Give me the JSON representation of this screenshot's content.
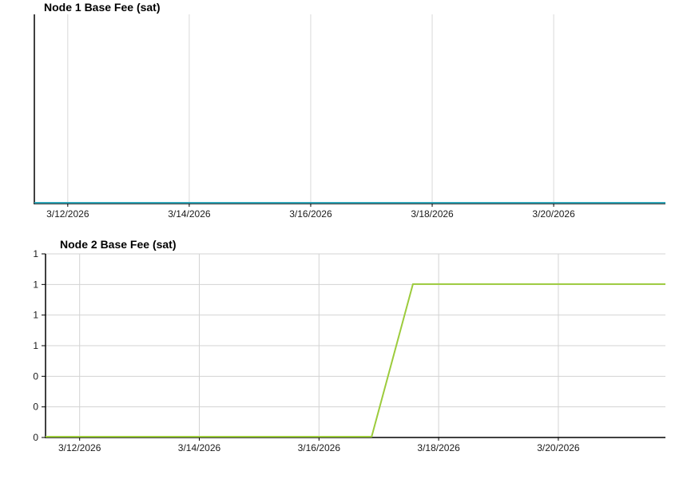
{
  "page": {
    "background": "#FFFFFF",
    "axis_color": "#000000",
    "tick_label_color": "#1A1A1A"
  },
  "chart_data": [
    {
      "type": "line",
      "title": "Node 1 Base Fee (sat)",
      "xlabel": "",
      "ylabel": "",
      "x_unit": "date (day of March 2026)",
      "x_range": [
        11.45,
        21.84
      ],
      "y_range": [
        0,
        1
      ],
      "grid": "vertical-only",
      "grid_color": "#D9D9D9",
      "legend": "none",
      "x_ticks": [
        {
          "value": 12,
          "label": "3/12/2026"
        },
        {
          "value": 14,
          "label": "3/14/2026"
        },
        {
          "value": 16,
          "label": "3/16/2026"
        },
        {
          "value": 18,
          "label": "3/18/2026"
        },
        {
          "value": 20,
          "label": "3/20/2026"
        }
      ],
      "y_ticks": [],
      "series": [
        {
          "name": "Node 1 Base Fee (sat)",
          "color": "#2FA3B5",
          "description": "constant 0 sat across the whole visible range, line hugging the x-axis",
          "points": [
            {
              "x": 11.45,
              "y": 0
            },
            {
              "x": 21.84,
              "y": 0
            }
          ]
        }
      ]
    },
    {
      "type": "line",
      "title": "Node 2 Base Fee (sat)",
      "xlabel": "",
      "ylabel": "",
      "x_unit": "date (day of March 2026)",
      "x_range": [
        11.43,
        21.79
      ],
      "y_range": [
        0,
        1.2
      ],
      "grid": "both",
      "grid_color": "#D3D3D3",
      "legend": "none",
      "x_ticks": [
        {
          "value": 12,
          "label": "3/12/2026"
        },
        {
          "value": 14,
          "label": "3/14/2026"
        },
        {
          "value": 16,
          "label": "3/16/2026"
        },
        {
          "value": 18,
          "label": "3/18/2026"
        },
        {
          "value": 20,
          "label": "3/20/2026"
        }
      ],
      "y_ticks": [
        {
          "value": 1.2,
          "label": "1"
        },
        {
          "value": 1.0,
          "label": "1"
        },
        {
          "value": 0.8,
          "label": "1"
        },
        {
          "value": 0.6,
          "label": "1"
        },
        {
          "value": 0.4,
          "label": "0"
        },
        {
          "value": 0.2,
          "label": "0"
        },
        {
          "value": 0.0,
          "label": "0"
        }
      ],
      "series": [
        {
          "name": "Node 2 Base Fee (sat)",
          "color": "#9CCB3C",
          "description": "0 sat until ~3/17/2026, then ramps up to 1 sat and stays at 1",
          "points": [
            {
              "x": 11.43,
              "y": 0
            },
            {
              "x": 16.88,
              "y": 0
            },
            {
              "x": 17.57,
              "y": 1
            },
            {
              "x": 21.79,
              "y": 1
            }
          ]
        }
      ]
    }
  ]
}
